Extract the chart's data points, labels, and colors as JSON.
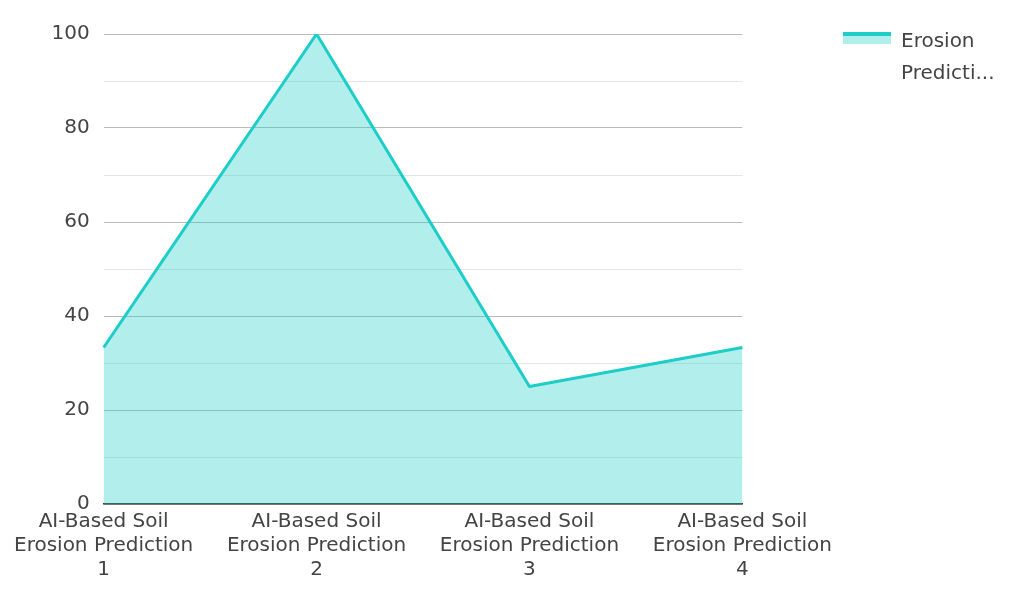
{
  "chart_data": {
    "type": "area",
    "categories": [
      "AI-Based Soil Erosion Prediction 1",
      "AI-Based Soil Erosion Prediction 2",
      "AI-Based Soil Erosion Prediction 3",
      "AI-Based Soil Erosion Prediction 4"
    ],
    "series": [
      {
        "name": "Erosion Predicti...",
        "color": "#1ccdc8",
        "values": [
          33.3,
          100,
          25,
          33.3
        ]
      }
    ],
    "ylim": [
      0,
      100
    ],
    "yticks": [
      0,
      {
        "value": 10,
        "label": null
      },
      20,
      {
        "value": 30,
        "label": null
      },
      40,
      {
        "value": 50,
        "label": null
      },
      60,
      {
        "value": 70,
        "label": null
      },
      80,
      {
        "value": 90,
        "label": null
      },
      100
    ],
    "grid": "y",
    "legend": "top right",
    "marker": "none"
  }
}
